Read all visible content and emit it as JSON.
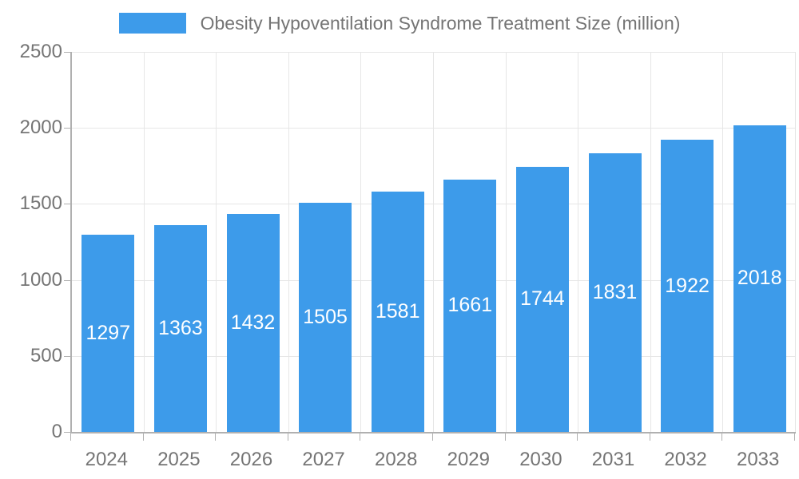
{
  "chart_data": {
    "type": "bar",
    "title": "Obesity Hypoventilation Syndrome Treatment Size (million)",
    "categories": [
      "2024",
      "2025",
      "2026",
      "2027",
      "2028",
      "2029",
      "2030",
      "2031",
      "2032",
      "2033"
    ],
    "values": [
      1297,
      1363,
      1432,
      1505,
      1581,
      1661,
      1744,
      1831,
      1922,
      2018
    ],
    "xlabel": "",
    "ylabel": "",
    "ylim": [
      0,
      2500
    ],
    "yticks": [
      0,
      500,
      1000,
      1500,
      2000,
      2500
    ],
    "legend_position": "top",
    "grid": true,
    "colors": {
      "bar": "#3d9bea",
      "bar_value_text": "#ffffff",
      "axis_text": "#757575",
      "legend_text": "#757575",
      "gridline": "#e6e6e6",
      "axis_line": "#b0b0b0",
      "background": "#ffffff"
    }
  }
}
